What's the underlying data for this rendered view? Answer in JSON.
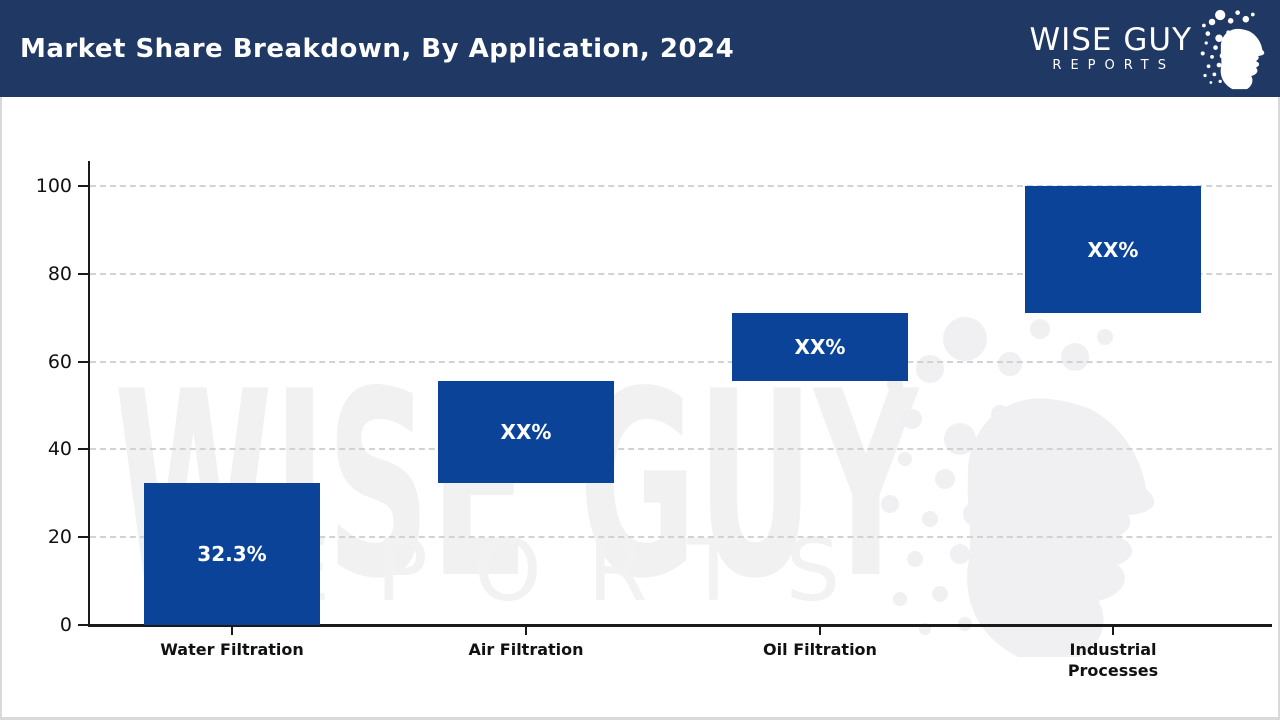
{
  "header": {
    "title": "Market Share Breakdown, By Application, 2024",
    "logo": {
      "line1": "WISE GUY",
      "line2": "REPORTS"
    }
  },
  "watermark": {
    "line1": "WISE GUY",
    "line2": "REPORTS"
  },
  "chart_data": {
    "type": "bar",
    "subtype": "waterfall",
    "title": "Market Share Breakdown, By Application, 2024",
    "xlabel": "",
    "ylabel": "",
    "ylim": [
      0,
      100
    ],
    "yticks": [
      0,
      20,
      40,
      60,
      80,
      100
    ],
    "grid": "horizontal-dashed",
    "legend": "none",
    "bar_color": "#0b4399",
    "bar_label_color": "#ffffff",
    "categories": [
      "Water Filtration",
      "Air Filtration",
      "Oil Filtration",
      "Industrial Processes"
    ],
    "segments": [
      {
        "category": "Water Filtration",
        "start": 0,
        "end": 32.3,
        "label": "32.3%"
      },
      {
        "category": "Air Filtration",
        "start": 32.3,
        "end": 55.5,
        "label": "XX%"
      },
      {
        "category": "Oil Filtration",
        "start": 55.5,
        "end": 71.0,
        "label": "XX%"
      },
      {
        "category": "Industrial Processes",
        "start": 71.0,
        "end": 100.0,
        "label": "XX%"
      }
    ]
  }
}
